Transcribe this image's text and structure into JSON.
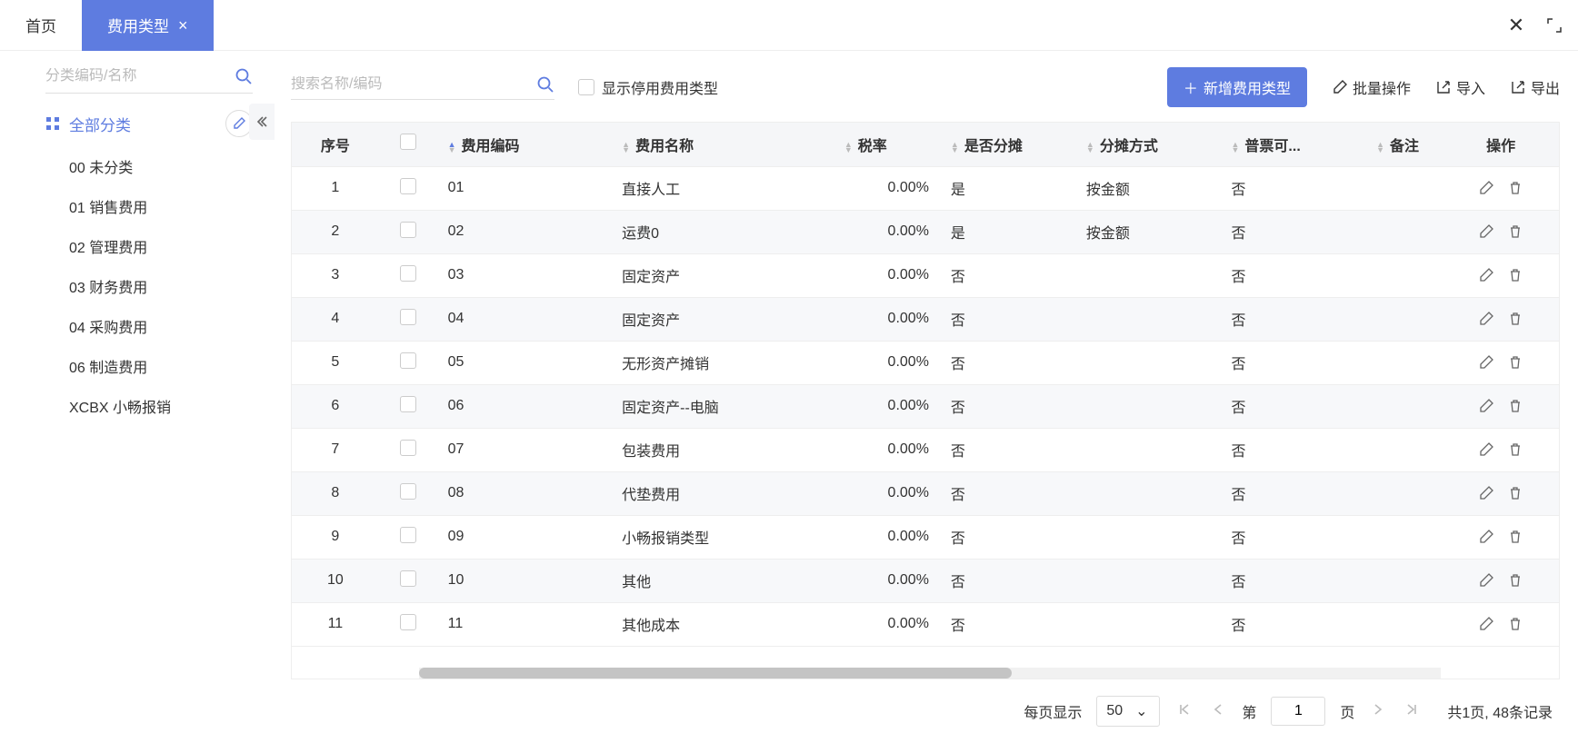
{
  "tabs": {
    "home": "首页",
    "active": "费用类型"
  },
  "sidebar": {
    "search_placeholder": "分类编码/名称",
    "root": "全部分类",
    "items": [
      "00 未分类",
      "01 销售费用",
      "02 管理费用",
      "03 财务费用",
      "04 采购费用",
      "06 制造费用",
      "XCBX 小畅报销"
    ]
  },
  "toolbar": {
    "search_placeholder": "搜索名称/编码",
    "show_disabled": "显示停用费用类型",
    "add": "新增费用类型",
    "batch": "批量操作",
    "import": "导入",
    "export": "导出"
  },
  "table": {
    "columns": {
      "seq": "序号",
      "code": "费用编码",
      "name": "费用名称",
      "rate": "税率",
      "allocate": "是否分摊",
      "method": "分摊方式",
      "normal": "普票可...",
      "remark": "备注",
      "ops": "操作"
    },
    "rows": [
      {
        "seq": "1",
        "code": "01",
        "name": "直接人工",
        "rate": "0.00%",
        "allocate": "是",
        "method": "按金额",
        "normal": "否"
      },
      {
        "seq": "2",
        "code": "02",
        "name": "运费0",
        "rate": "0.00%",
        "allocate": "是",
        "method": "按金额",
        "normal": "否"
      },
      {
        "seq": "3",
        "code": "03",
        "name": "固定资产",
        "rate": "0.00%",
        "allocate": "否",
        "method": "",
        "normal": "否"
      },
      {
        "seq": "4",
        "code": "04",
        "name": "固定资产",
        "rate": "0.00%",
        "allocate": "否",
        "method": "",
        "normal": "否"
      },
      {
        "seq": "5",
        "code": "05",
        "name": "无形资产摊销",
        "rate": "0.00%",
        "allocate": "否",
        "method": "",
        "normal": "否"
      },
      {
        "seq": "6",
        "code": "06",
        "name": "固定资产--电脑",
        "rate": "0.00%",
        "allocate": "否",
        "method": "",
        "normal": "否"
      },
      {
        "seq": "7",
        "code": "07",
        "name": "包装费用",
        "rate": "0.00%",
        "allocate": "否",
        "method": "",
        "normal": "否"
      },
      {
        "seq": "8",
        "code": "08",
        "name": "代垫费用",
        "rate": "0.00%",
        "allocate": "否",
        "method": "",
        "normal": "否"
      },
      {
        "seq": "9",
        "code": "09",
        "name": "小畅报销类型",
        "rate": "0.00%",
        "allocate": "否",
        "method": "",
        "normal": "否"
      },
      {
        "seq": "10",
        "code": "10",
        "name": "其他",
        "rate": "0.00%",
        "allocate": "否",
        "method": "",
        "normal": "否"
      },
      {
        "seq": "11",
        "code": "11",
        "name": "其他成本",
        "rate": "0.00%",
        "allocate": "否",
        "method": "",
        "normal": "否"
      }
    ]
  },
  "pager": {
    "per_page_label": "每页显示",
    "per_page_value": "50",
    "page_label_prefix": "第",
    "page_value": "1",
    "page_label_suffix": "页",
    "summary": "共1页, 48条记录"
  },
  "colors": {
    "primary": "#5E7CE0",
    "header_bg": "#f5f6f8",
    "row_stripe": "#f7f8fa",
    "border": "#eeeeee"
  }
}
